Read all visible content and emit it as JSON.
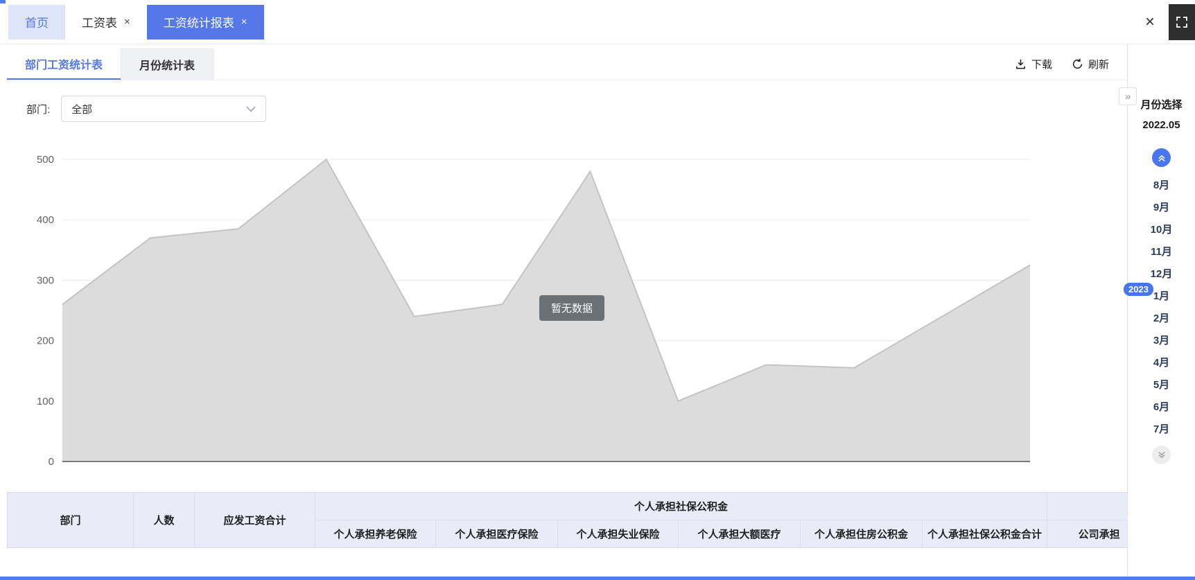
{
  "icons": {
    "close": "×",
    "collapse": "»"
  },
  "colors": {
    "primary": "#5677e8",
    "home_tab_bg": "#dfe6fb",
    "chart_fill": "#dcdcdc",
    "chart_line": "#c4c4c4",
    "table_header_bg": "#e9ecf7",
    "scrollbar_blue": "#4f7bf0",
    "tooltip_bg": "#6b7075"
  },
  "top_tabs": [
    {
      "label": "首页",
      "closable": false,
      "active": false
    },
    {
      "label": "工资表",
      "closable": true,
      "active": false
    },
    {
      "label": "工资统计报表",
      "closable": true,
      "active": true
    }
  ],
  "report_tabs": [
    {
      "label": "部门工资统计表",
      "active": true
    },
    {
      "label": "月份统计表",
      "active": false
    }
  ],
  "toolbar": {
    "download_label": "下载",
    "refresh_label": "刷新"
  },
  "filter": {
    "label": "部门:",
    "selected": "全部"
  },
  "chart_data": {
    "type": "area",
    "x": [
      1,
      2,
      3,
      4,
      5,
      6,
      7,
      8,
      9,
      10,
      11,
      12
    ],
    "values": [
      260,
      370,
      385,
      500,
      240,
      260,
      480,
      100,
      160,
      155,
      240,
      325
    ],
    "ylim": [
      0,
      500
    ],
    "yticks": [
      0,
      100,
      200,
      300,
      400,
      500
    ],
    "x_tick_labels_visible": false,
    "grid": true,
    "fill_color": "#dcdcdc",
    "line_color": "#c4c4c4",
    "grid_color": "#ebebeb",
    "axis_color": "#555555",
    "annotation": "暂无数据"
  },
  "empty_overlay": {
    "text": "暂无数据"
  },
  "month_panel": {
    "title": "月份选择",
    "current": "2022.05",
    "year_badge": "2023",
    "months": [
      "8月",
      "9月",
      "10月",
      "11月",
      "12月",
      "1月",
      "2月",
      "3月",
      "4月",
      "5月",
      "6月",
      "7月"
    ]
  },
  "table": {
    "columns": [
      "部门",
      "人数",
      "应发工资合计"
    ],
    "group_header": "个人承担社保公积金",
    "sub_columns": [
      "个人承担养老保险",
      "个人承担医疗保险",
      "个人承担失业保险",
      "个人承担大额医疗",
      "个人承担住房公积金",
      "个人承担社保公积金合计"
    ],
    "next_group_sub_column": "公司承担",
    "rows": []
  }
}
